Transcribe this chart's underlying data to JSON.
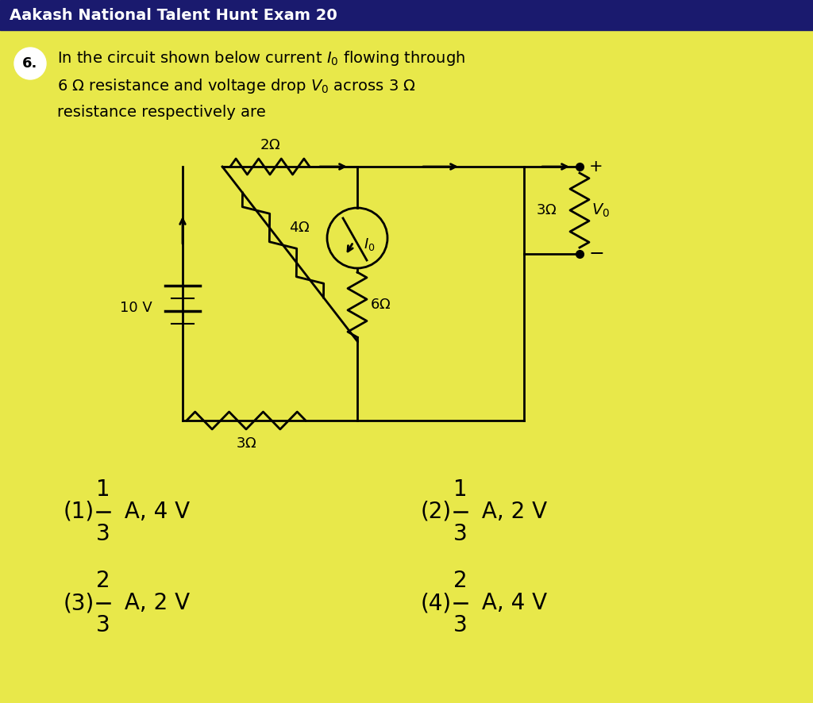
{
  "background_color": "#e8e84a",
  "header_color": "#1a1a6e",
  "header_text": "Aakash National Talent Hunt Exam 20",
  "title_line1": "In the circuit shown below current $I_0$ flowing through",
  "title_line2": "6 $\\Omega$ resistance and voltage drop $V_0$ across 3 $\\Omega$",
  "title_line3": "resistance respectively are",
  "q_num": "6.",
  "opt1": "(1)",
  "opt1_frac_num": "1",
  "opt1_frac_den": "3",
  "opt1_rest": " A, 4 V",
  "opt2": "(2)",
  "opt2_frac_num": "1",
  "opt2_frac_den": "3",
  "opt2_rest": " A, 2 V",
  "opt3": "(3)",
  "opt3_frac_num": "2",
  "opt3_frac_den": "3",
  "opt3_rest": " A, 2 V",
  "opt4": "(4)",
  "opt4_frac_num": "2",
  "opt4_frac_den": "3",
  "opt4_rest": " A, 4 V",
  "lw": 2.0
}
